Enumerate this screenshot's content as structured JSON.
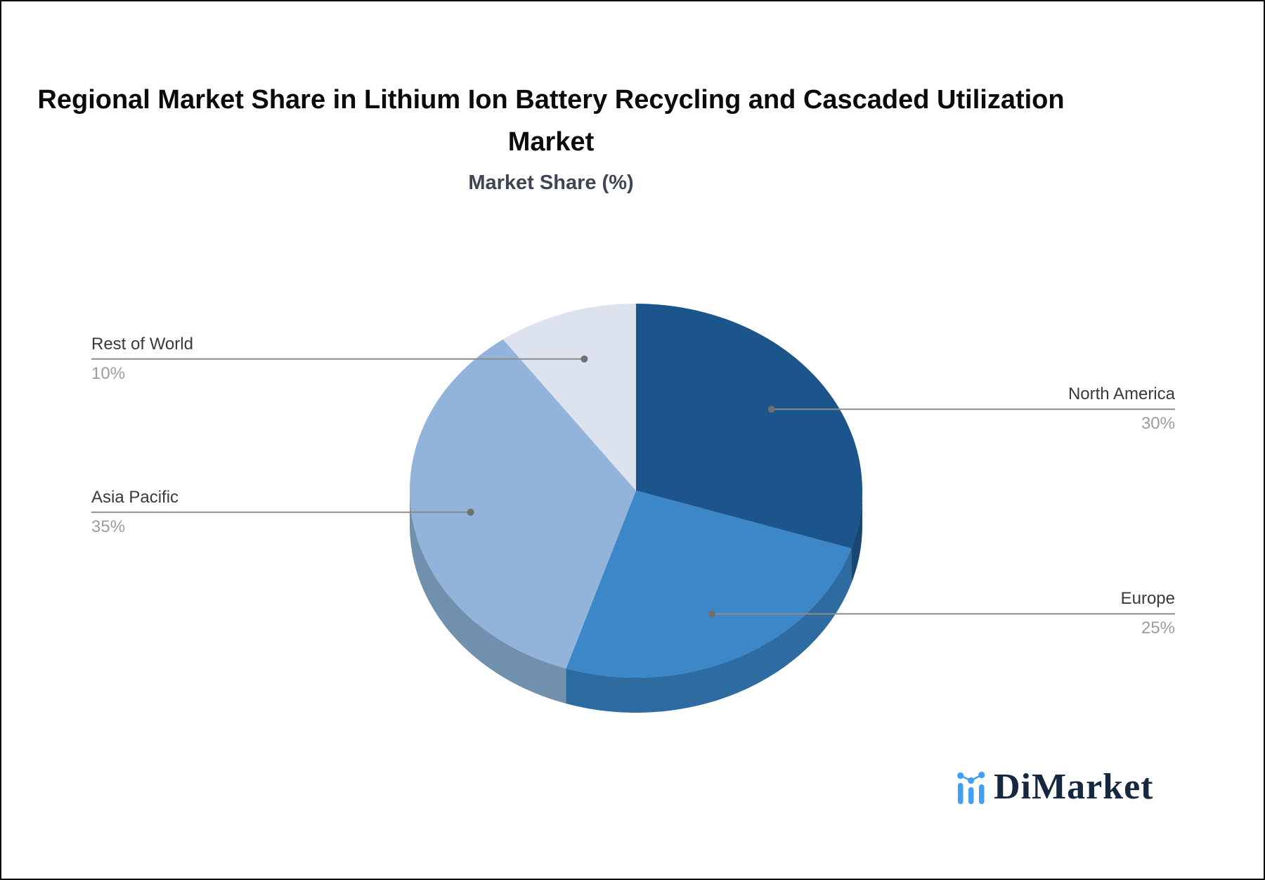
{
  "header": {
    "title_line1": "Regional Market Share in Lithium Ion Battery Recycling and Cascaded Utilization",
    "title_line2": "Market",
    "subtitle": "Market Share (%)"
  },
  "brand": {
    "name": "DiMarket",
    "icon": "bar-line-chart-icon",
    "icon_color": "#41a0f1",
    "text_color": "#16283f"
  },
  "colors": {
    "background": "#ffffff",
    "title": "#0b0b0b",
    "subtitle": "#3e4653",
    "leader_line": "#8c8c8c",
    "leader_dot": "#707070",
    "label_name": "#3a3a3a",
    "label_value": "#9c9c9c"
  },
  "chart_data": {
    "type": "pie",
    "style": "3d",
    "title": "Regional Market Share in Lithium Ion Battery Recycling and Cascaded Utilization Market",
    "subtitle": "Market Share (%)",
    "unit": "%",
    "start_angle": "12-oclock",
    "direction": "clockwise",
    "legend": "none",
    "labels": "callout-lines",
    "slices": [
      {
        "label": "North America",
        "value": 30,
        "display": "30%",
        "color": "#1b558b",
        "side_color": "#174772",
        "label_side": "right"
      },
      {
        "label": "Europe",
        "value": 25,
        "display": "25%",
        "color": "#3b87c8",
        "side_color": "#2e6ba1",
        "label_side": "right"
      },
      {
        "label": "Asia Pacific",
        "value": 35,
        "display": "35%",
        "color": "#92b4da",
        "side_color": "#7090ae",
        "label_side": "left"
      },
      {
        "label": "Rest of World",
        "value": 10,
        "display": "10%",
        "color": "#dce3ee",
        "side_color": "#b4bfcd",
        "label_side": "left"
      }
    ]
  }
}
